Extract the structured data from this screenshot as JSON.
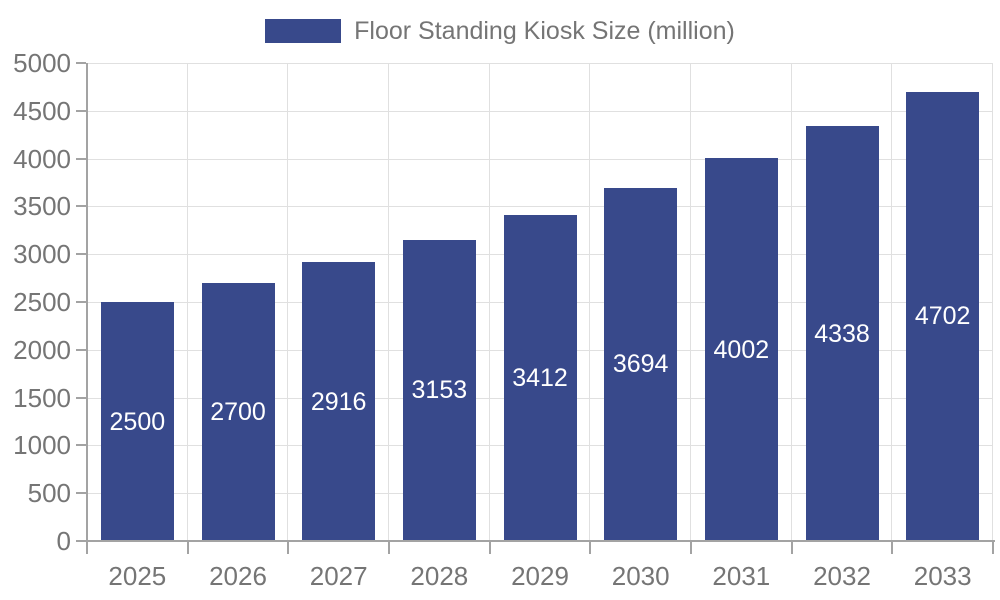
{
  "chart_data": {
    "type": "bar",
    "title": "Floor Standing Kiosk Size (million)",
    "legend": {
      "label": "Floor Standing Kiosk Size (million)",
      "position": "top-center"
    },
    "categories": [
      "2025",
      "2026",
      "2027",
      "2028",
      "2029",
      "2030",
      "2031",
      "2032",
      "2033"
    ],
    "series": [
      {
        "name": "Floor Standing Kiosk Size (million)",
        "values": [
          2500,
          2700,
          2916,
          3153,
          3412,
          3694,
          4002,
          4338,
          4702
        ]
      }
    ],
    "value_labels": [
      "2500",
      "2700",
      "2916",
      "3153",
      "3412",
      "3694",
      "4002",
      "4338",
      "4702"
    ],
    "xlabel": "",
    "ylabel": "",
    "ylim": [
      0,
      5000
    ],
    "ytick_step": 500,
    "ytick_labels": [
      "0",
      "500",
      "1000",
      "1500",
      "2000",
      "2500",
      "3000",
      "3500",
      "4000",
      "4500",
      "5000"
    ],
    "grid": true,
    "colors": {
      "bar": "#38498B",
      "bar_value_text": "#ffffff",
      "axis_text": "#757575",
      "grid_line": "#E0E0E0",
      "axis_line": "#A3A3A3",
      "background": "#ffffff"
    }
  }
}
